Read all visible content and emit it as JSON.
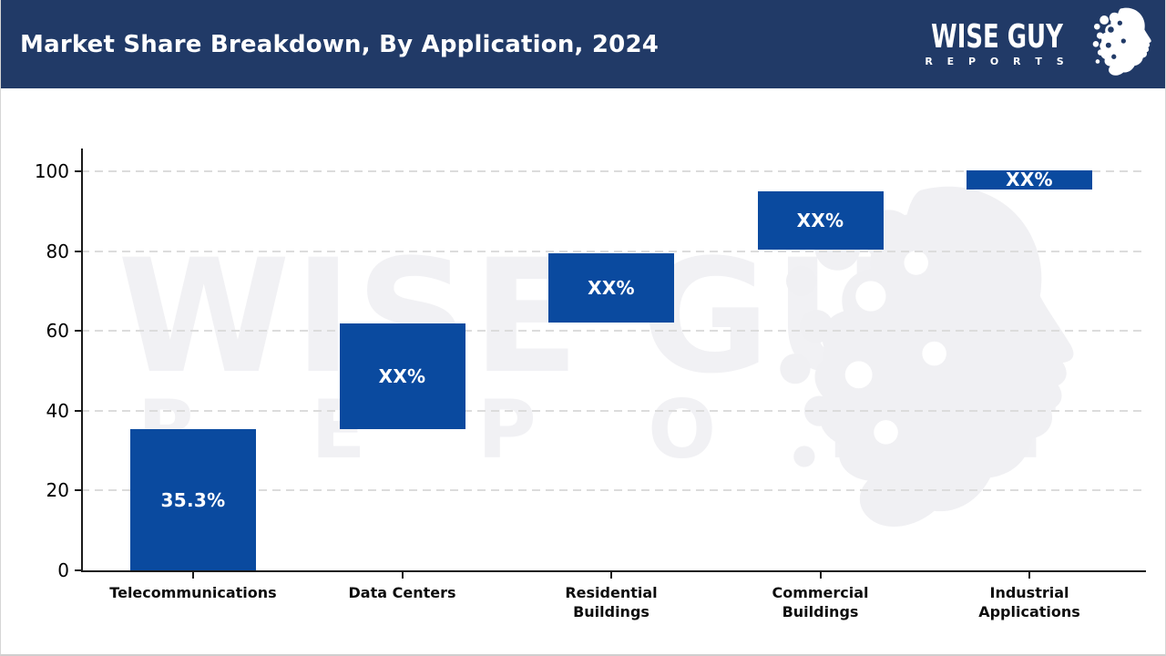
{
  "header": {
    "title": "Market Share Breakdown, By Application, 2024",
    "brand": {
      "line1": "WISE GUY",
      "line2": "R E P O R T S"
    },
    "bg_color": "#213a67",
    "text_color": "#ffffff"
  },
  "watermark": {
    "line1": "WISE GUY",
    "line2": "R E P O R T S"
  },
  "chart_data": {
    "type": "bar",
    "subtype": "waterfall",
    "title": "Market Share Breakdown, By Application, 2024",
    "categories": [
      "Telecommunications",
      "Data Centers",
      "Residential Buildings",
      "Commercial Buildings",
      "Industrial Applications"
    ],
    "segments": [
      {
        "category": "Telecommunications",
        "label_lines": [
          "Telecommunications"
        ],
        "start": 0,
        "end": 35.3,
        "label": "35.3%"
      },
      {
        "category": "Data Centers",
        "label_lines": [
          "Data Centers"
        ],
        "start": 35.5,
        "end": 61.8,
        "label": "XX%"
      },
      {
        "category": "Residential Buildings",
        "label_lines": [
          "Residential",
          "Buildings"
        ],
        "start": 62.0,
        "end": 79.5,
        "label": "XX%"
      },
      {
        "category": "Commercial Buildings",
        "label_lines": [
          "Commercial",
          "Buildings"
        ],
        "start": 80.4,
        "end": 95.0,
        "label": "XX%"
      },
      {
        "category": "Industrial Applications",
        "label_lines": [
          "Industrial",
          "Applications"
        ],
        "start": 95.5,
        "end": 100.3,
        "label": "XX%"
      }
    ],
    "yticks": [
      "0",
      "20",
      "40",
      "60",
      "80",
      "100"
    ],
    "ytick_values": [
      0,
      20,
      40,
      60,
      80,
      100
    ],
    "ylim": [
      0,
      105.7
    ],
    "xlabel": "",
    "ylabel": "",
    "grid": "dashed-horizontal",
    "legend": "none",
    "bar_color": "#0a4a9f",
    "bar_label_color": "#ffffff",
    "grid_color": "#dcdcdc",
    "axis_color": "#1a1a1a"
  }
}
